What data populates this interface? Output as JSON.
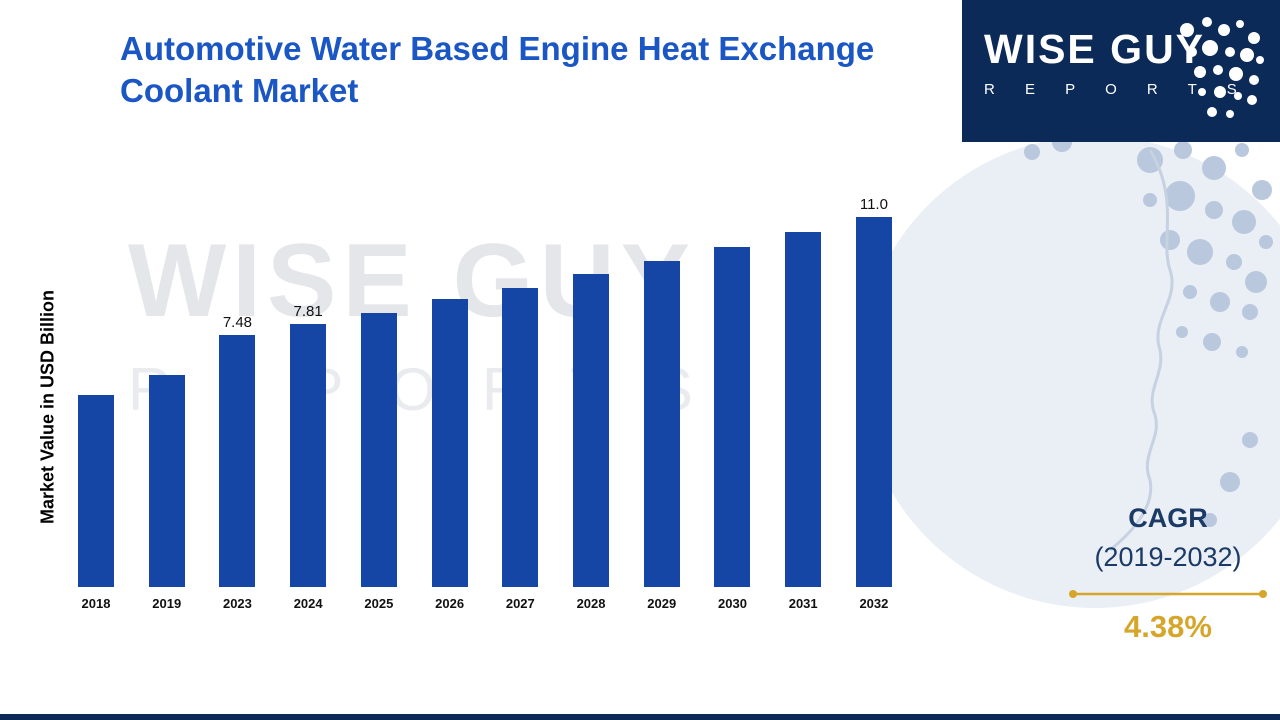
{
  "page": {
    "title": "Automotive Water Based Engine Heat Exchange Coolant Market"
  },
  "logo": {
    "line1": "WISE GUY",
    "line2": "R E P O R T S"
  },
  "watermark": {
    "line1": "WISE GUY",
    "line2": "REPORTS"
  },
  "cagr": {
    "label_line1": "CAGR",
    "label_line2": "(2019-2032)",
    "value": "4.38%"
  },
  "colors": {
    "title_blue": "#1a56c4",
    "bar_blue": "#1646a5",
    "navy": "#0b2a57",
    "gold": "#d6a62b",
    "cagr_navy": "#1b3a66"
  },
  "chart_data": {
    "type": "bar",
    "title": "Automotive Water Based Engine Heat Exchange Coolant Market",
    "xlabel": "",
    "ylabel": "Market Value in USD Billion",
    "ylim": [
      0,
      11
    ],
    "grid": false,
    "legend": "none",
    "bar_color": "#1646a5",
    "categories": [
      "2018",
      "2019",
      "2023",
      "2024",
      "2025",
      "2026",
      "2027",
      "2028",
      "2029",
      "2030",
      "2031",
      "2032"
    ],
    "values": [
      5.7,
      6.3,
      7.48,
      7.81,
      8.15,
      8.55,
      8.9,
      9.3,
      9.7,
      10.1,
      10.55,
      11.0
    ],
    "data_labels": {
      "2023": "7.48",
      "2024": "7.81",
      "2032": "11.0"
    }
  }
}
